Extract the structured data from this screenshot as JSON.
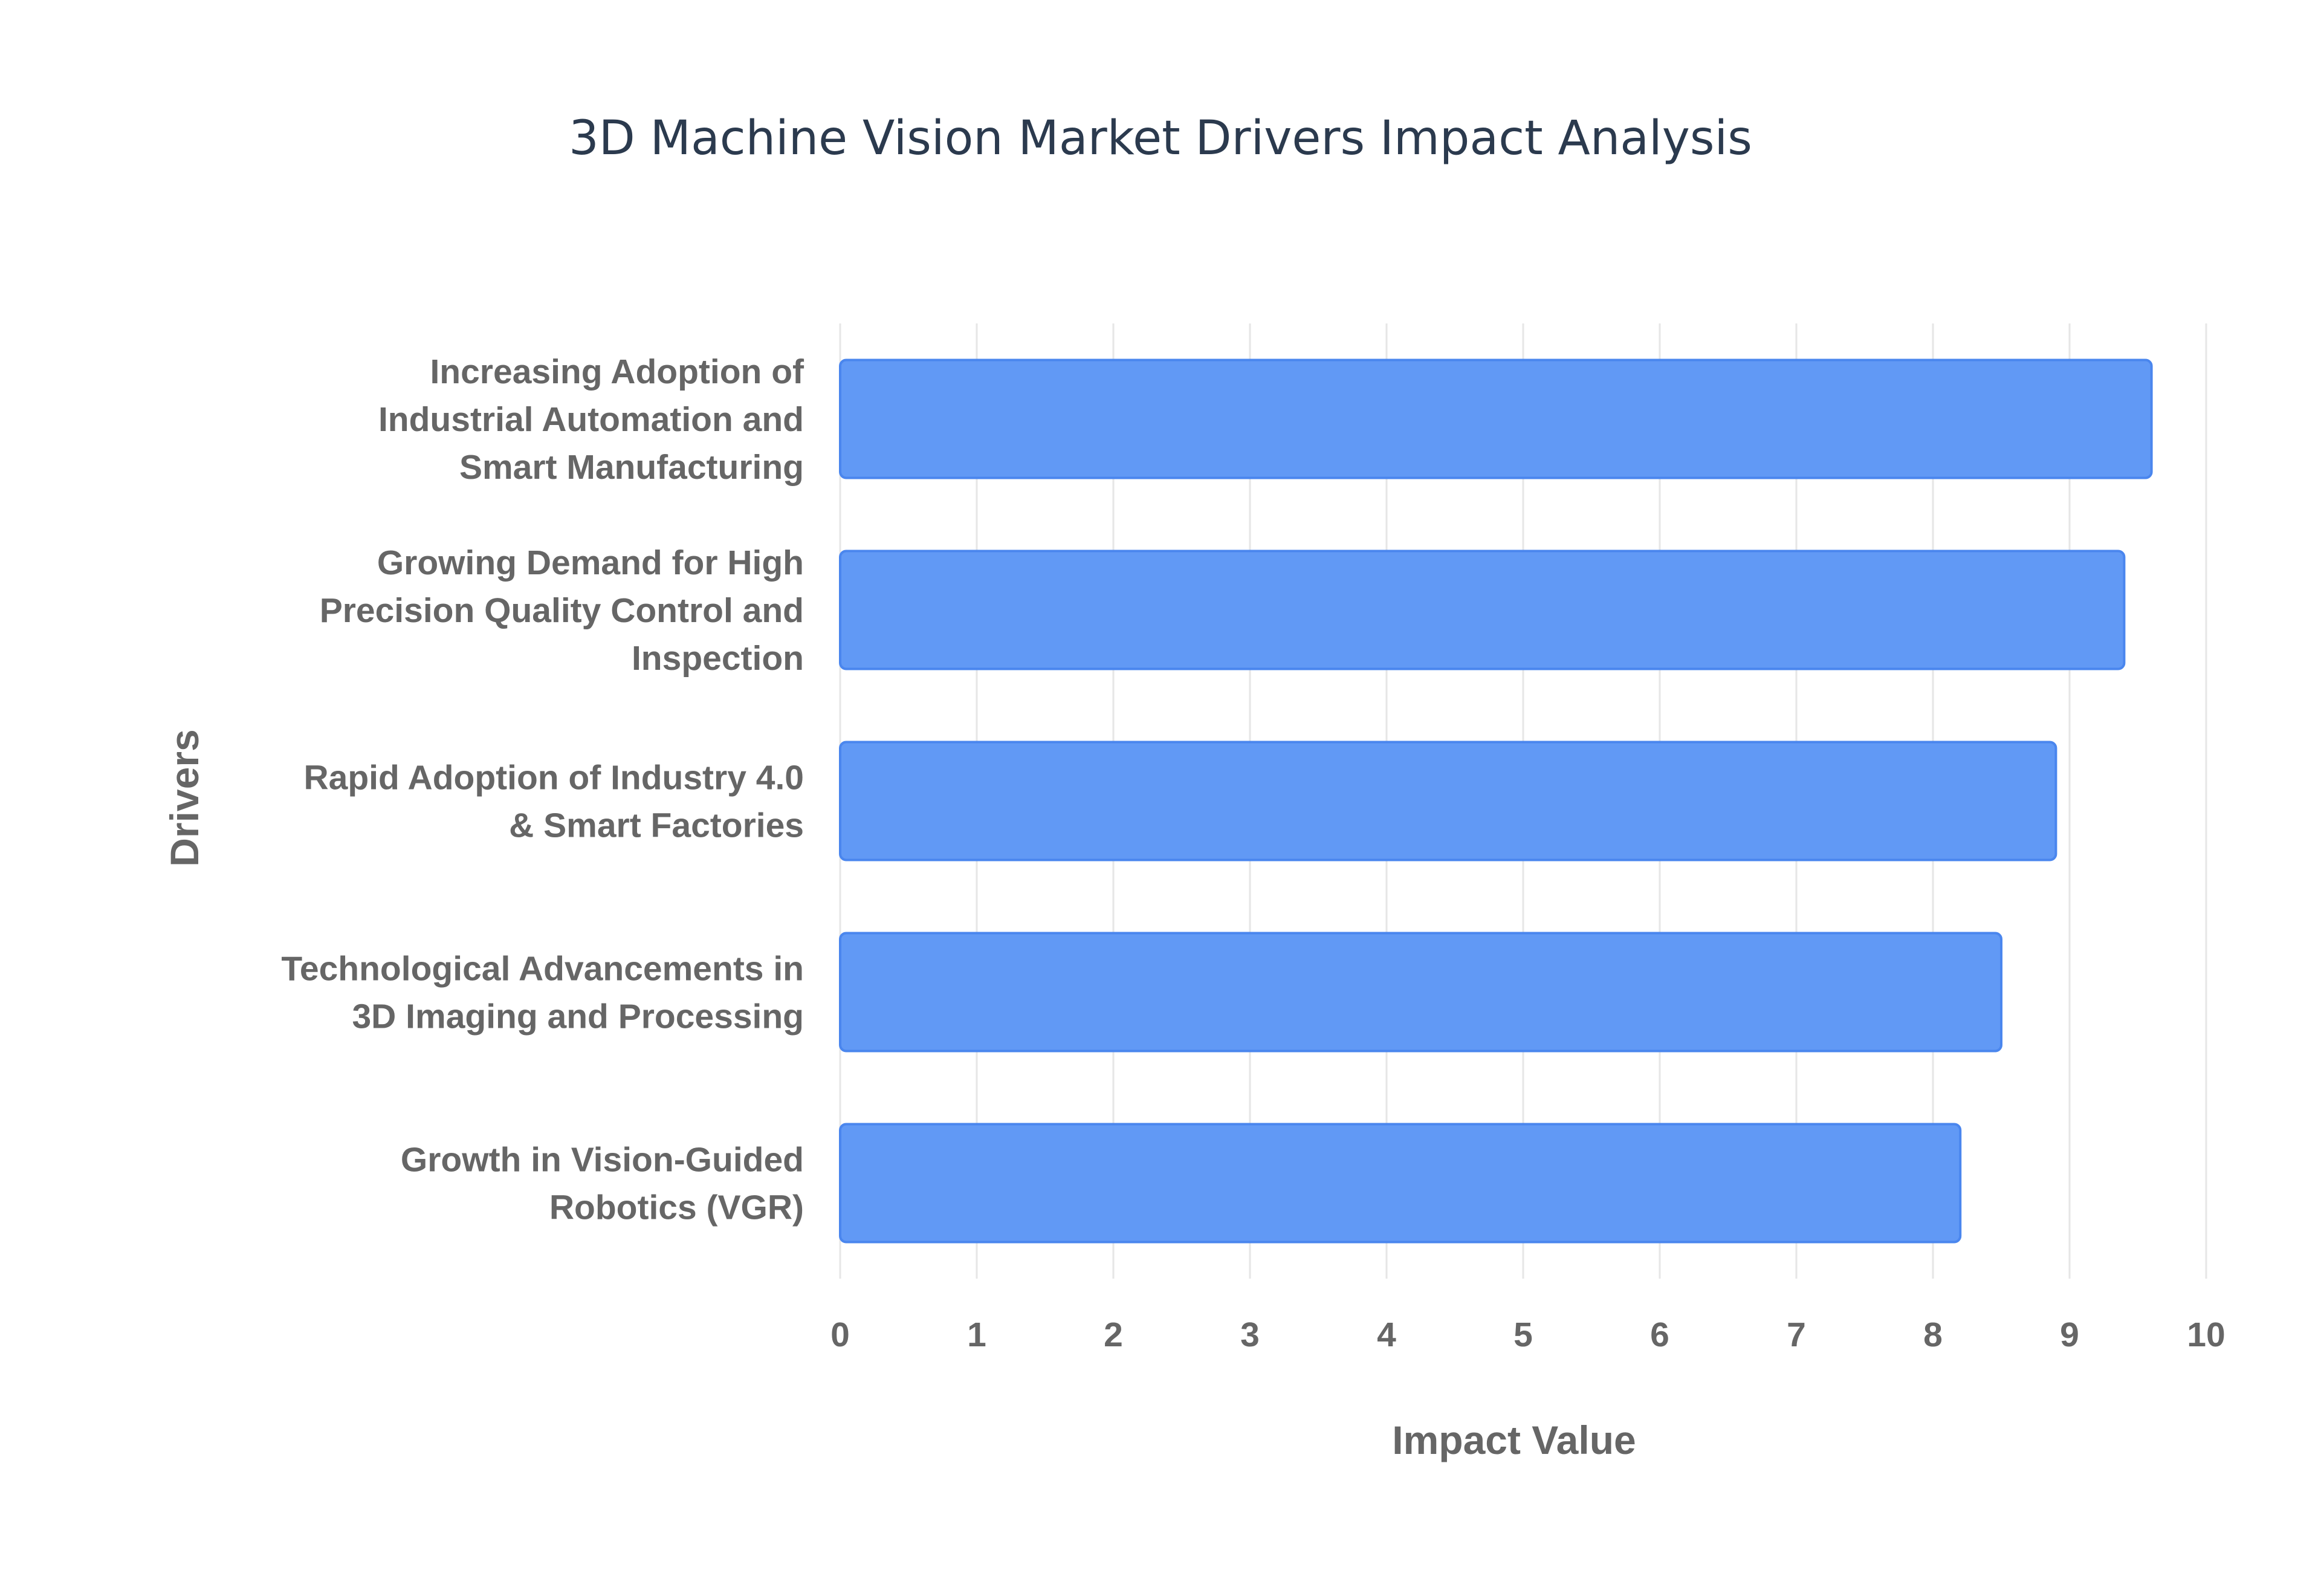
{
  "chart_data": {
    "type": "bar",
    "orientation": "horizontal",
    "title": "3D Machine Vision Market Drivers Impact Analysis",
    "xlabel": "Impact Value",
    "ylabel": "Drivers",
    "xlim": [
      0,
      10
    ],
    "xticks": [
      "0",
      "1",
      "2",
      "3",
      "4",
      "5",
      "6",
      "7",
      "8",
      "9",
      "10"
    ],
    "grid": true,
    "bar_color": "#6199f5",
    "bar_border_color": "#4a86ee",
    "categories": [
      "Increasing Adoption of Industrial Automation and Smart Manufacturing",
      "Growing Demand for High Precision Quality Control and Inspection",
      "Rapid Adoption of Industry 4.0 & Smart Factories",
      "Technological Advancements in 3D Imaging and Processing",
      "Growth in Vision-Guided Robotics (VGR)"
    ],
    "category_lines": [
      [
        "Increasing Adoption of",
        "Industrial Automation and",
        "Smart Manufacturing"
      ],
      [
        "Growing Demand for High",
        "Precision Quality Control and",
        "Inspection"
      ],
      [
        "Rapid Adoption of Industry 4.0",
        "& Smart Factories"
      ],
      [
        "Technological Advancements in",
        "3D Imaging and Processing"
      ],
      [
        "Growth in Vision-Guided",
        "Robotics (VGR)"
      ]
    ],
    "values": [
      9.6,
      9.4,
      8.9,
      8.5,
      8.2
    ]
  }
}
